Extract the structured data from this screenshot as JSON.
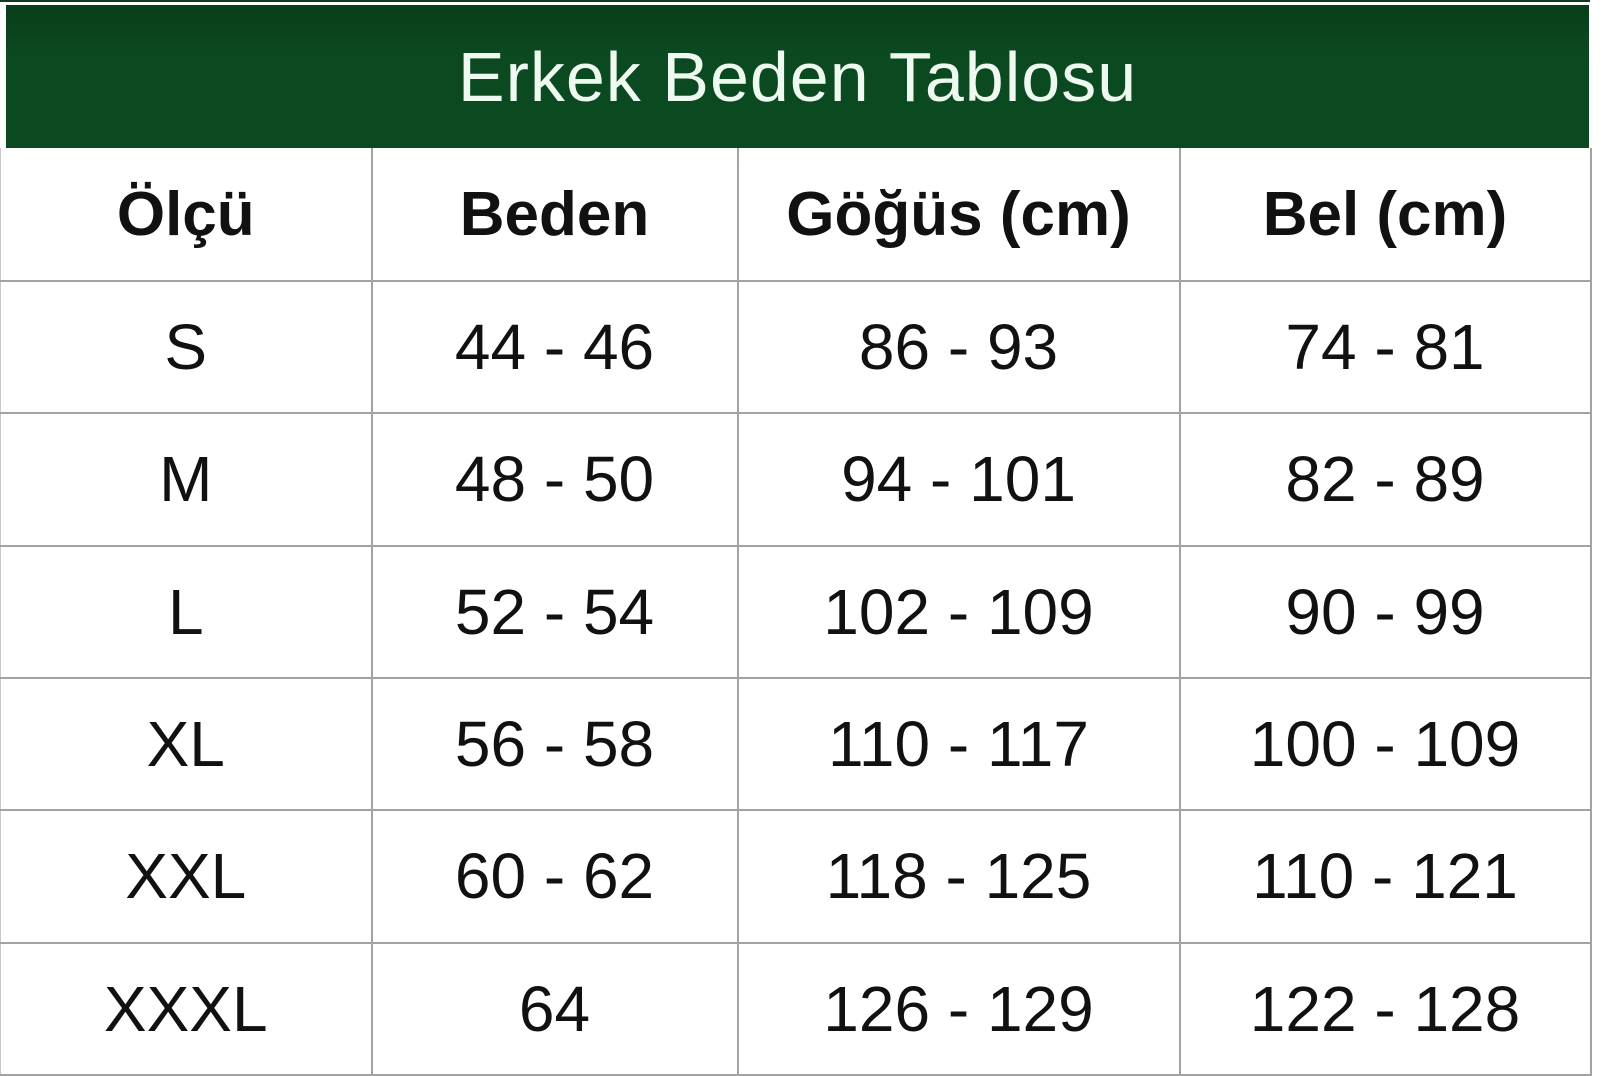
{
  "chart_data": {
    "type": "table",
    "title": "Erkek Beden Tablosu",
    "columns": [
      "Ölçü",
      "Beden",
      "Göğüs (cm)",
      "Bel (cm)"
    ],
    "rows": [
      [
        "S",
        "44 - 46",
        "86 - 93",
        "74 - 81"
      ],
      [
        "M",
        "48 - 50",
        "94 - 101",
        "82 - 89"
      ],
      [
        "L",
        "52 - 54",
        "102 - 109",
        "90 - 99"
      ],
      [
        "XL",
        "56 - 58",
        "110 - 117",
        "100 - 109"
      ],
      [
        "XXL",
        "60 - 62",
        "118 - 125",
        "110 - 121"
      ],
      [
        "XXXL",
        "64",
        "126 - 129",
        "122 - 128"
      ]
    ]
  },
  "colors": {
    "banner_green": "#0b4a21",
    "banner_top_line": "#123a1d",
    "banner_text": "#eefaf0",
    "grid_border": "#a3a3a3",
    "cell_text": "#111111",
    "background": "#ffffff"
  }
}
